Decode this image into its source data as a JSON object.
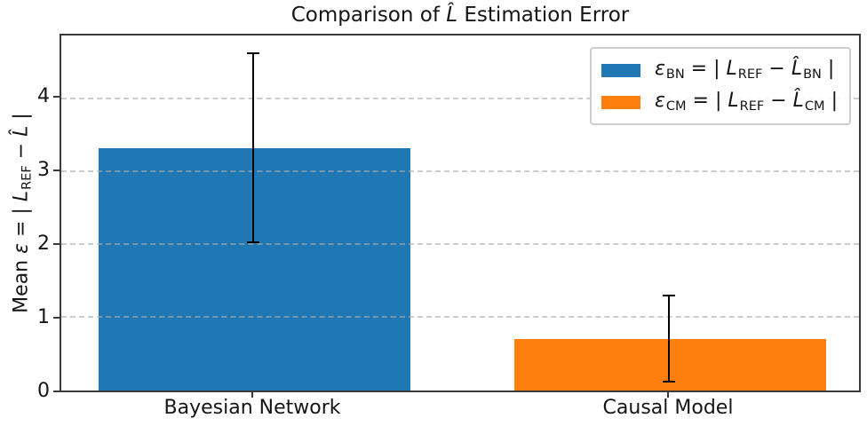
{
  "title": {
    "prefix": "Comparison of ",
    "math_lhat": "L̂",
    "suffix": " Estimation Error"
  },
  "y_axis": {
    "label": {
      "prefix": "Mean ",
      "epsilon": "ε",
      "eq": " = ",
      "open": "| ",
      "L": "L",
      "L_sub": "REF",
      "minus": " − ",
      "L_hat": "L̂",
      "close": " |"
    },
    "ticks": [
      "0",
      "1",
      "2",
      "3",
      "4"
    ]
  },
  "x_axis": {
    "ticks": [
      "Bayesian Network",
      "Causal Model"
    ]
  },
  "legend": {
    "items": [
      {
        "epsilon": "ε",
        "eps_sub": "BN",
        "eq": " = ",
        "open": "| ",
        "L": "L",
        "L_sub": "REF",
        "minus": " − ",
        "L_hat": "L̂",
        "L_hat_sub": "BN",
        "close": " |"
      },
      {
        "epsilon": "ε",
        "eps_sub": "CM",
        "eq": " = ",
        "open": "| ",
        "L": "L",
        "L_sub": "REF",
        "minus": " − ",
        "L_hat": "L̂",
        "L_hat_sub": "CM",
        "close": " |"
      }
    ]
  },
  "chart_data": {
    "type": "bar",
    "title": "Comparison of L̂ Estimation Error",
    "categories": [
      "Bayesian Network",
      "Causal Model"
    ],
    "values": [
      3.33,
      0.71
    ],
    "error_bars": [
      1.31,
      0.6
    ],
    "series_labels": [
      "ε_BN = | L_REF − L̂_BN |",
      "ε_CM = | L_REF − L̂_CM |"
    ],
    "colors": [
      "#1f77b4",
      "#ff7f0e"
    ],
    "error_bar_color": "#000000",
    "xlabel": "",
    "ylabel": "Mean ε = | L_REF − L̂ |",
    "ylim": [
      0,
      4.87
    ],
    "yticks": [
      0,
      1,
      2,
      3,
      4
    ],
    "grid": "horizontal-dashed",
    "legend_position": "upper right"
  }
}
